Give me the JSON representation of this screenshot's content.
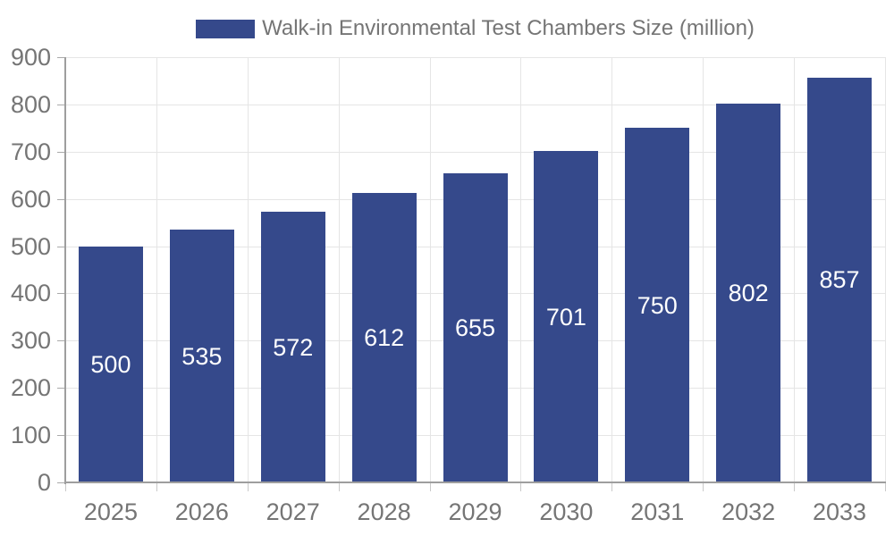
{
  "chart_data": {
    "type": "bar",
    "title": "Walk-in Environmental Test Chambers Size (million)",
    "categories": [
      "2025",
      "2026",
      "2027",
      "2028",
      "2029",
      "2030",
      "2031",
      "2032",
      "2033"
    ],
    "values": [
      500,
      535,
      572,
      612,
      655,
      701,
      750,
      802,
      857
    ],
    "xlabel": "",
    "ylabel": "",
    "ylim": [
      0,
      900
    ],
    "ytick_step": 100,
    "ytick_labels": [
      "0",
      "100",
      "200",
      "300",
      "400",
      "500",
      "600",
      "700",
      "800",
      "900"
    ],
    "grid": true,
    "legend_position": "top-center",
    "value_labels": "inside-center",
    "colors": {
      "bar": "#35498B",
      "bar_value_label": "#ffffff",
      "axis_text": "#757575",
      "grid_line": "#e5e5e5",
      "axis_line": "#9e9e9e",
      "background": "#ffffff"
    }
  }
}
